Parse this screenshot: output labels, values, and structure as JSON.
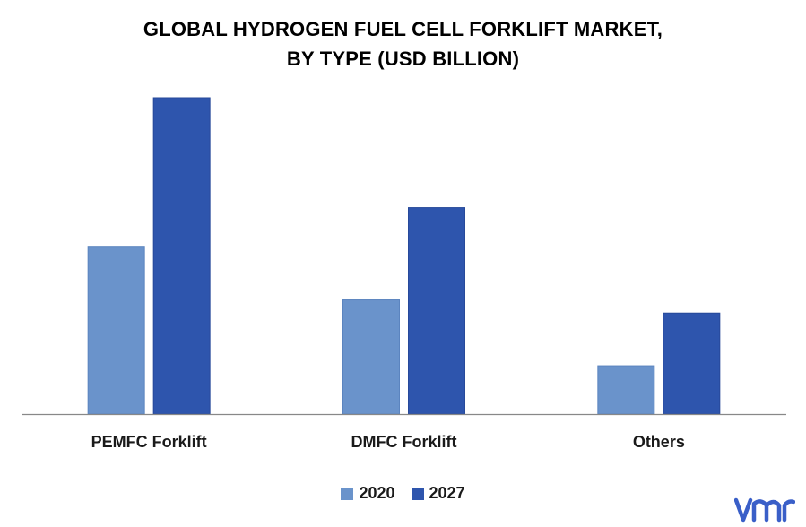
{
  "title_line1": "GLOBAL HYDROGEN FUEL CELL FORKLIFT MARKET,",
  "title_line2": "BY TYPE (USD BILLION)",
  "colors": {
    "series_2020": "#6a93cb",
    "series_2027": "#2e55ad",
    "axis": "#888888",
    "logo": "#3a5fc8"
  },
  "chart_data": {
    "type": "bar",
    "title": "GLOBAL HYDROGEN FUEL CELL FORKLIFT MARKET, BY TYPE (USD BILLION)",
    "categories": [
      "PEMFC Forklift",
      "DMFC Forklift",
      "Others"
    ],
    "series": [
      {
        "name": "2020",
        "values": [
          1.9,
          1.3,
          0.55
        ]
      },
      {
        "name": "2027",
        "values": [
          3.6,
          2.35,
          1.15
        ]
      }
    ],
    "xlabel": "",
    "ylabel": "",
    "ylim": [
      0,
      3.6
    ],
    "grid": false,
    "legend": "bottom"
  },
  "legend": {
    "item_2020": "2020",
    "item_2027": "2027"
  },
  "logo_icon": "vmr-logo-icon"
}
